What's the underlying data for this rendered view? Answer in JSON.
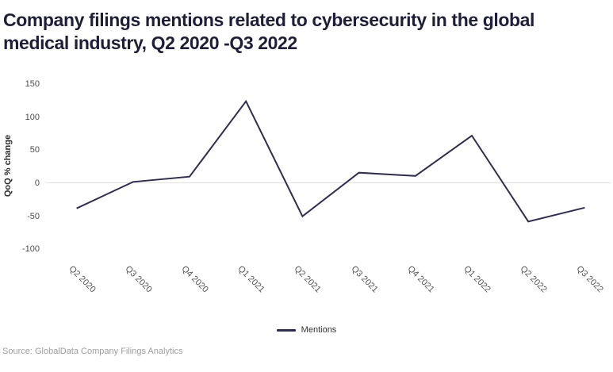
{
  "title": "Company filings mentions related to cybersecurity in the global medical industry, Q2 2020 -Q3 2022",
  "source": "Source: GlobalData Company Filings Analytics",
  "chart_data": {
    "type": "line",
    "categories": [
      "Q2 2020",
      "Q3 2020",
      "Q4 2020",
      "Q1 2021",
      "Q2 2021",
      "Q3 2021",
      "Q4 2021",
      "Q1 2022",
      "Q2 2022",
      "Q3 2022"
    ],
    "series": [
      {
        "name": "Mentions",
        "values": [
          -38,
          2,
          10,
          124,
          -50,
          16,
          11,
          72,
          -58,
          -37
        ],
        "color": "#302e4f"
      }
    ],
    "ylabel": "QoQ % change",
    "xlabel": "",
    "yticks": [
      150,
      100,
      50,
      0,
      -50,
      -100
    ],
    "ylim": [
      -119,
      163
    ],
    "grid": "zero-line-only",
    "legend_position": "bottom-center"
  },
  "colors": {
    "line": "#302e4f",
    "title_text": "#1e1e38",
    "axis_text": "#4d4d4d",
    "x_label_text": "#555555",
    "grid_line": "#e2e2e2",
    "legend_text": "#333333",
    "source_text": "#9e9e9e"
  }
}
